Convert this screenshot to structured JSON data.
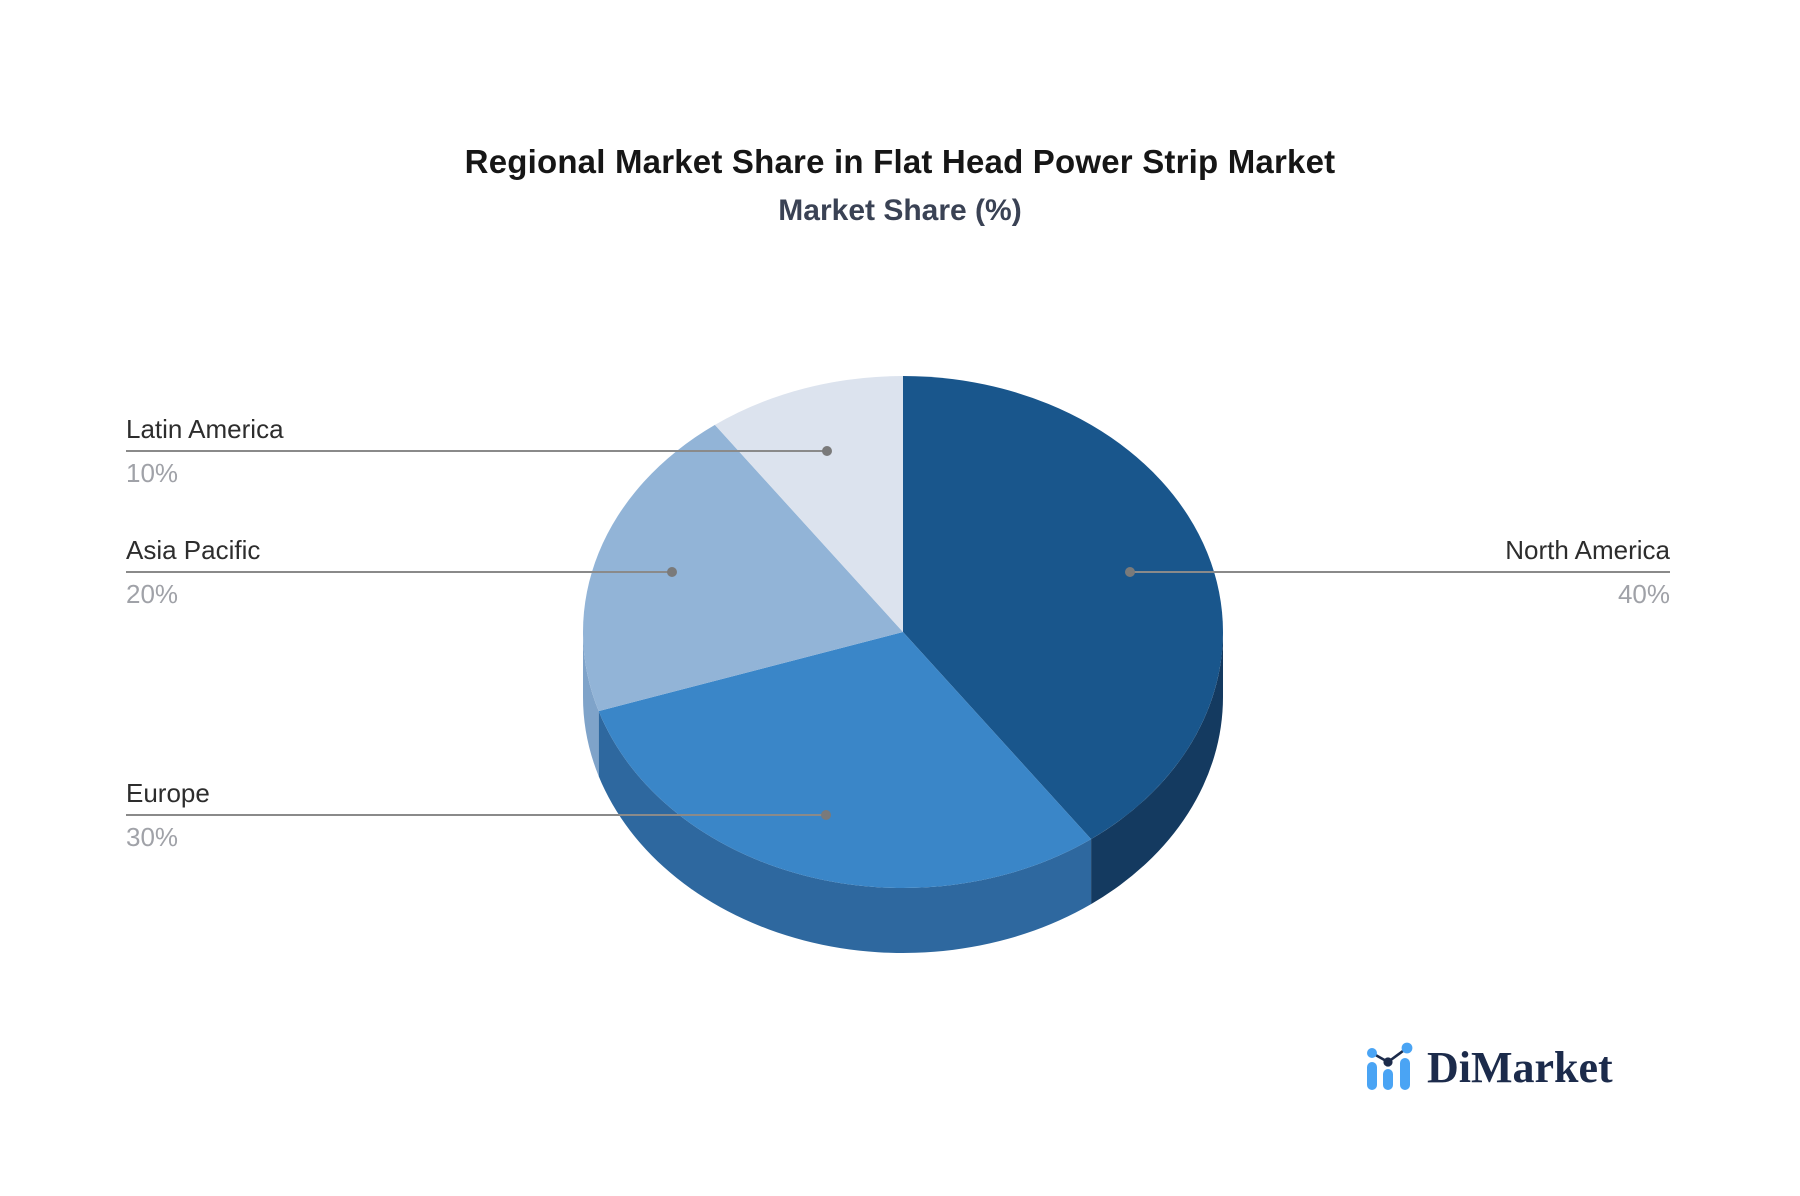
{
  "title": "Regional Market Share in Flat Head Power Strip Market",
  "subtitle": "Market Share (%)",
  "chart_data": {
    "type": "pie",
    "style": "3d-exploded-none",
    "direction": "clockwise",
    "start_angle_deg": 0,
    "labels": [
      "North America",
      "Europe",
      "Asia Pacific",
      "Latin America"
    ],
    "values": [
      40,
      30,
      20,
      10
    ],
    "value_labels": [
      "40%",
      "30%",
      "20%",
      "10%"
    ],
    "colors": [
      "#19568C",
      "#3A86C8",
      "#92B4D7",
      "#DCE3EE"
    ],
    "side_colors": [
      "#143A60",
      "#2E689F",
      "#7FA3C9",
      "#C3CEDF"
    ],
    "legend_position": "callout-labels",
    "callout": {
      "line_color": "#8A8A8A",
      "dot_color": "#7A7A7A",
      "name_color": "#2D2D2D",
      "value_color": "#A0A2A8"
    }
  },
  "logo": {
    "text": "DiMarket",
    "icon": "bar-line-chart-logo-icon",
    "icon_color": "#4AA4F4",
    "text_color": "#1C2B4B"
  }
}
